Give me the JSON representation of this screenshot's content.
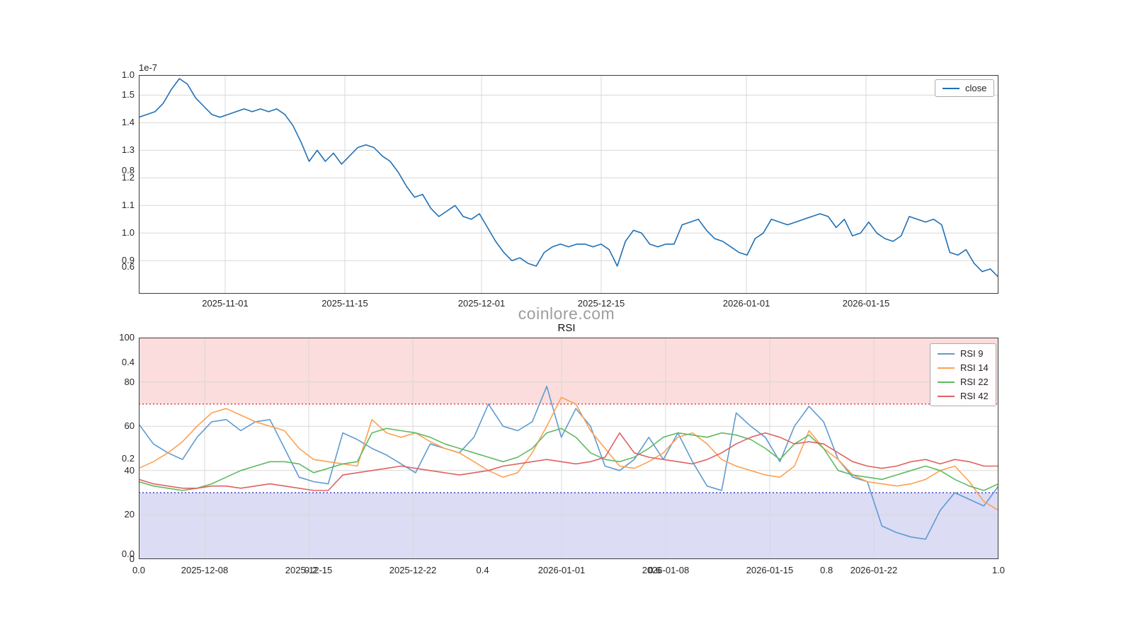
{
  "watermark": "coinlore.com",
  "figure": {
    "background": "#ffffff",
    "left_axis_ticks": [
      1.0,
      0.8,
      0.6,
      0.4,
      0.2,
      0.0
    ],
    "bottom_axis_ticks": [
      0.0,
      0.2,
      0.4,
      0.6,
      0.8,
      1.0
    ]
  },
  "chart_data": [
    {
      "type": "line",
      "title": "",
      "offset_label": "1e-7",
      "grid": true,
      "legend_position": "upper right",
      "ylim": [
        0.78,
        1.573
      ],
      "yticks": [
        "1.5",
        "1.4",
        "1.3",
        "1.2",
        "1.1",
        "1.0",
        "0.9"
      ],
      "ytick_values": [
        1.5,
        1.4,
        1.3,
        1.2,
        1.1,
        1.0,
        0.9
      ],
      "xticks": [
        {
          "label": "2025-11-01",
          "pos": 0.1005
        },
        {
          "label": "2025-11-15",
          "pos": 0.2397
        },
        {
          "label": "2025-12-01",
          "pos": 0.3987
        },
        {
          "label": "2025-12-15",
          "pos": 0.5379
        },
        {
          "label": "2026-01-01",
          "pos": 0.7068
        },
        {
          "label": "2026-01-15",
          "pos": 0.846
        }
      ],
      "series": [
        {
          "name": "close",
          "color": "#2070b4",
          "values": [
            1.42,
            1.43,
            1.44,
            1.47,
            1.52,
            1.56,
            1.54,
            1.49,
            1.46,
            1.43,
            1.42,
            1.43,
            1.44,
            1.45,
            1.44,
            1.45,
            1.44,
            1.45,
            1.43,
            1.39,
            1.33,
            1.26,
            1.3,
            1.26,
            1.29,
            1.25,
            1.28,
            1.31,
            1.32,
            1.31,
            1.28,
            1.26,
            1.22,
            1.17,
            1.13,
            1.14,
            1.09,
            1.06,
            1.08,
            1.1,
            1.06,
            1.05,
            1.07,
            1.02,
            0.97,
            0.93,
            0.9,
            0.91,
            0.89,
            0.88,
            0.93,
            0.95,
            0.96,
            0.95,
            0.96,
            0.96,
            0.95,
            0.96,
            0.94,
            0.88,
            0.97,
            1.01,
            1.0,
            0.96,
            0.95,
            0.96,
            0.96,
            1.03,
            1.04,
            1.05,
            1.01,
            0.98,
            0.97,
            0.95,
            0.93,
            0.92,
            0.98,
            1.0,
            1.05,
            1.04,
            1.03,
            1.04,
            1.05,
            1.06,
            1.07,
            1.06,
            1.02,
            1.05,
            0.99,
            1.0,
            1.04,
            1.0,
            0.98,
            0.97,
            0.99,
            1.06,
            1.05,
            1.04,
            1.05,
            1.03,
            0.93,
            0.92,
            0.94,
            0.89,
            0.86,
            0.87,
            0.84
          ]
        }
      ]
    },
    {
      "type": "line",
      "title": "RSI",
      "grid": true,
      "legend_position": "upper right",
      "ylim": [
        0,
        100
      ],
      "yticks": [
        "100",
        "80",
        "60",
        "40",
        "20",
        "0"
      ],
      "ytick_values": [
        100,
        80,
        60,
        40,
        20,
        0
      ],
      "xticks": [
        {
          "label": "2025-12-08",
          "pos": 0.0766
        },
        {
          "label": "2025-12-15",
          "pos": 0.1977
        },
        {
          "label": "2025-12-22",
          "pos": 0.3188
        },
        {
          "label": "2026-01-01",
          "pos": 0.4918
        },
        {
          "label": "2026-01-08",
          "pos": 0.6128
        },
        {
          "label": "2026-01-15",
          "pos": 0.7339
        },
        {
          "label": "2026-01-22",
          "pos": 0.855
        }
      ],
      "bands": [
        {
          "name": "overbought-zone",
          "range": [
            70,
            100
          ],
          "color": "#fbdddd"
        },
        {
          "name": "oversold-zone",
          "range": [
            0,
            30
          ],
          "color": "#dcdcf5"
        }
      ],
      "threshold_lines": [
        {
          "value": 70,
          "color": "#e02020"
        },
        {
          "value": 30,
          "color": "#2020c0"
        }
      ],
      "series": [
        {
          "name": "RSI 9",
          "color": "#5f9bd0",
          "values": [
            61,
            52,
            48,
            45,
            55,
            62,
            63,
            58,
            62,
            63,
            50,
            37,
            35,
            34,
            57,
            54,
            50,
            47,
            43,
            39,
            52,
            50,
            48,
            55,
            70,
            60,
            58,
            62,
            78,
            55,
            68,
            60,
            42,
            40,
            45,
            55,
            45,
            57,
            44,
            33,
            31,
            66,
            60,
            55,
            44,
            60,
            69,
            62,
            45,
            37,
            35,
            15,
            12,
            10,
            9,
            22,
            30,
            27,
            24,
            33
          ]
        },
        {
          "name": "RSI 14",
          "color": "#ffa050",
          "values": [
            41,
            44,
            48,
            53,
            60,
            66,
            68,
            65,
            62,
            60,
            58,
            50,
            45,
            44,
            43,
            42,
            63,
            57,
            55,
            57,
            53,
            50,
            48,
            44,
            40,
            37,
            39,
            48,
            60,
            73,
            70,
            58,
            50,
            42,
            41,
            44,
            48,
            55,
            57,
            52,
            45,
            42,
            40,
            38,
            37,
            42,
            58,
            50,
            45,
            38,
            35,
            34,
            33,
            34,
            36,
            40,
            42,
            35,
            26,
            22
          ]
        },
        {
          "name": "RSI 22",
          "color": "#5fba62",
          "values": [
            35,
            33,
            32,
            31,
            32,
            34,
            37,
            40,
            42,
            44,
            44,
            43,
            39,
            41,
            43,
            44,
            57,
            59,
            58,
            57,
            55,
            52,
            50,
            48,
            46,
            44,
            46,
            50,
            57,
            59,
            55,
            48,
            45,
            44,
            46,
            50,
            55,
            57,
            56,
            55,
            57,
            56,
            54,
            50,
            45,
            52,
            56,
            50,
            40,
            38,
            37,
            36,
            38,
            40,
            42,
            40,
            36,
            33,
            31,
            34
          ]
        },
        {
          "name": "RSI 42",
          "color": "#e06262",
          "values": [
            36,
            34,
            33,
            32,
            32,
            33,
            33,
            32,
            33,
            34,
            33,
            32,
            31,
            31,
            38,
            39,
            40,
            41,
            42,
            41,
            40,
            39,
            38,
            39,
            40,
            42,
            43,
            44,
            45,
            44,
            43,
            44,
            46,
            57,
            48,
            46,
            45,
            44,
            43,
            45,
            48,
            52,
            55,
            57,
            55,
            52,
            53,
            52,
            48,
            44,
            42,
            41,
            42,
            44,
            45,
            43,
            45,
            44,
            42,
            42
          ]
        }
      ]
    }
  ]
}
